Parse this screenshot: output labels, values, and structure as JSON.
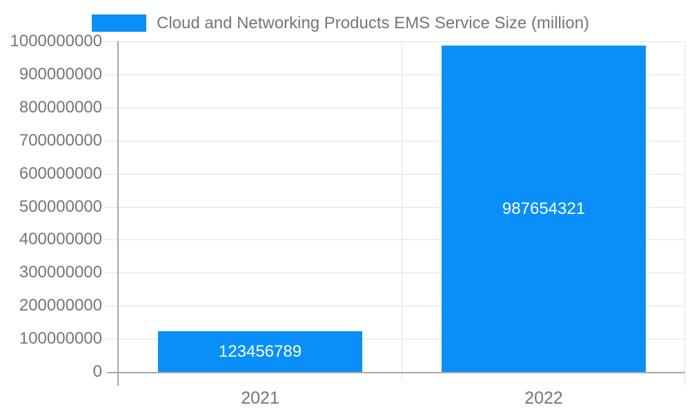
{
  "chart_data": {
    "type": "bar",
    "title": "Cloud and Networking Products EMS Service Size (million)",
    "legend": {
      "position": "top",
      "entries": [
        {
          "label": "Cloud and Networking Products EMS Service Size (million)"
        }
      ]
    },
    "categories": [
      "2021",
      "2022"
    ],
    "values": [
      123456789,
      987654321
    ],
    "value_labels": [
      "123456789",
      "987654321"
    ],
    "xlabel": "",
    "ylabel": "",
    "ylim": [
      0,
      1000000000
    ],
    "yticks": [
      "0",
      "100000000",
      "200000000",
      "300000000",
      "400000000",
      "500000000",
      "600000000",
      "700000000",
      "800000000",
      "900000000",
      "1000000000"
    ],
    "grid": true,
    "colors": {
      "bar": "#0a8ff8",
      "axis_text": "#757575",
      "gridline": "#e2e2e2",
      "axis_line": "#a6a6a6",
      "value_label_text": "#ffffff",
      "background": "#ffffff"
    }
  }
}
